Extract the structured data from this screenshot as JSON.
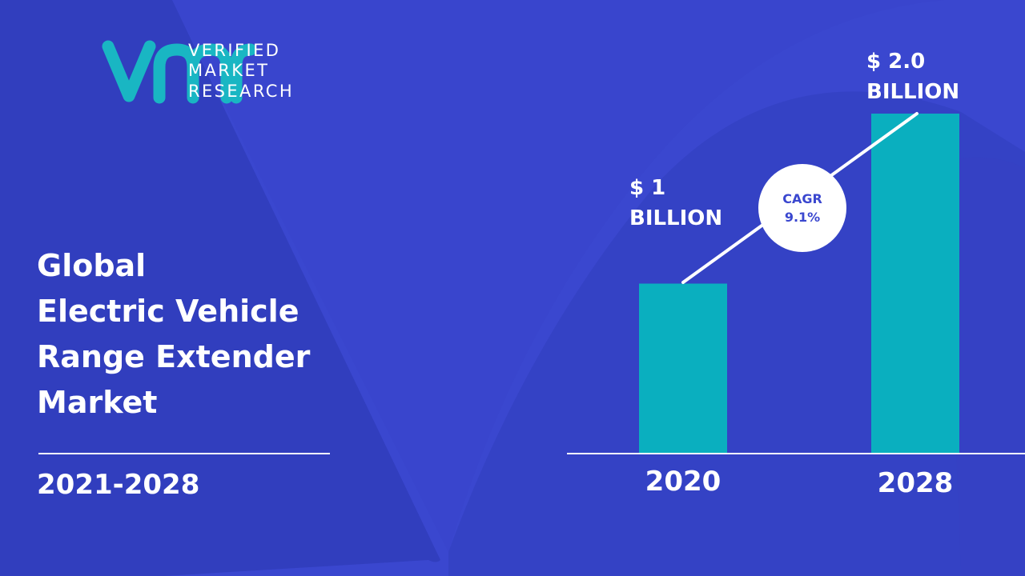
{
  "brand": {
    "logo_mark": "vmr",
    "name_lines": [
      "VERIFIED",
      "MARKET",
      "RESEARCH"
    ]
  },
  "title_lines": [
    "Global",
    "Electric Vehicle",
    "Range Extender",
    "Market"
  ],
  "period": "2021-2028",
  "chart_data": {
    "type": "bar",
    "categories": [
      "2020",
      "2028"
    ],
    "values": [
      1.0,
      2.0
    ],
    "data_labels": [
      {
        "line1": "$ 1",
        "line2": "BILLION"
      },
      {
        "line1": "$ 2.0",
        "line2": "BILLION"
      }
    ],
    "annotation": {
      "line1": "CAGR",
      "line2": "9.1%"
    },
    "ylim": [
      0,
      2.0
    ],
    "grid": false,
    "legend": "none"
  },
  "colors": {
    "background": "#3a47cf",
    "background_v_shape": "#2f3bb8",
    "bar": "#0aafbf",
    "logo": "#19b6c3",
    "text": "#ffffff",
    "cagr_text": "#3a47cf"
  }
}
